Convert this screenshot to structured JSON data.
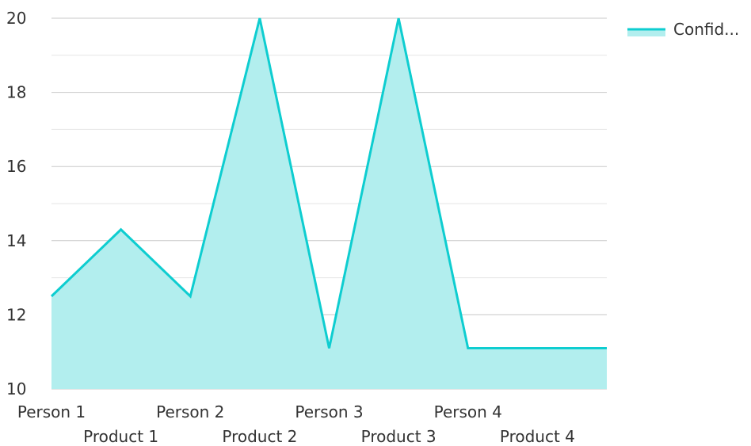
{
  "chart_data": {
    "type": "area",
    "categories": [
      "Person 1",
      "Product 1",
      "Person 2",
      "Product 2",
      "Person 3",
      "Product 3",
      "Person 4",
      "Product 4"
    ],
    "series": [
      {
        "name": "Confid...",
        "values": [
          12.5,
          14.3,
          12.5,
          20,
          11.1,
          20,
          11.1,
          11.1
        ]
      }
    ],
    "ylim": [
      10,
      20
    ],
    "yticks": [
      10,
      12,
      14,
      16,
      18,
      20
    ],
    "grid": true,
    "legend_position": "top-right",
    "title": "",
    "xlabel": "",
    "ylabel": ""
  },
  "colors": {
    "line": "#0ecdd0",
    "fill": "#b2eeee",
    "major_grid": "#c8c8c8",
    "minor_grid": "#e6e6e6",
    "axis_text": "#333333"
  }
}
